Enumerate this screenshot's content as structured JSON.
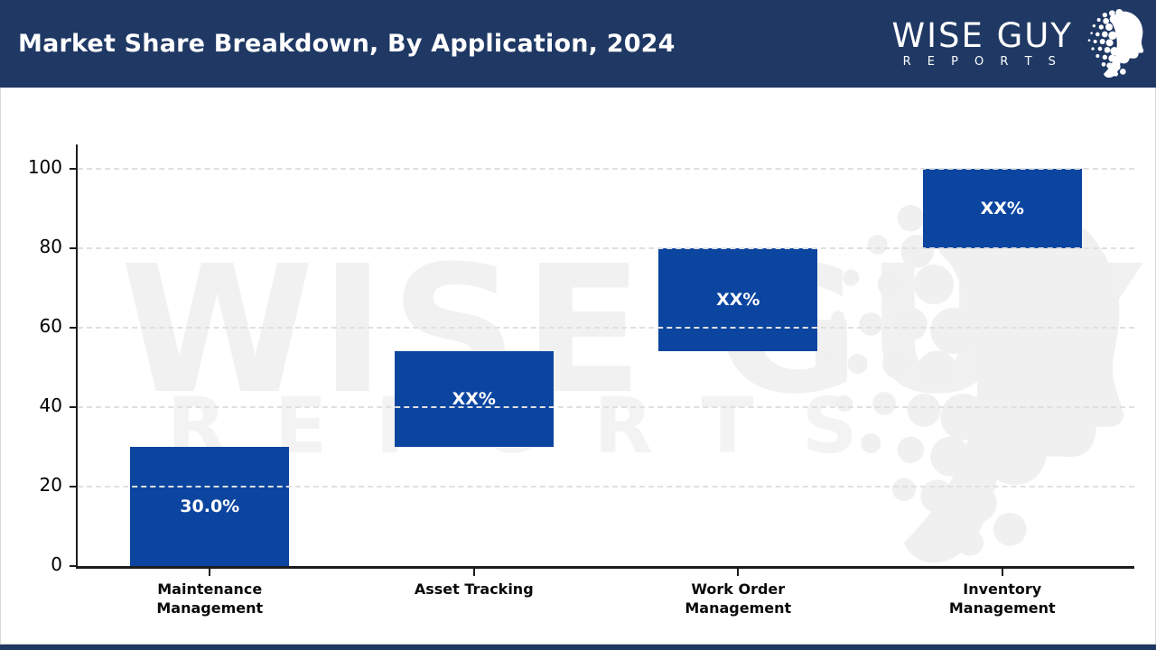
{
  "header": {
    "title": "Market Share Breakdown, By Application, 2024",
    "bg_color": "#1f3864"
  },
  "brand": {
    "line1": "WISE GUY",
    "line2": "R E P O R T S"
  },
  "watermark": {
    "line1": "WISE GUY",
    "line2": "R E P O R T S"
  },
  "colors": {
    "header_bg": "#1f3864",
    "bar": "#0b45a0",
    "axis": "#1c1c1c",
    "grid": "#e0e0e0"
  },
  "chart_data": {
    "type": "bar",
    "subtype": "waterfall",
    "title": "Market Share Breakdown, By Application, 2024",
    "categories": [
      "Maintenance Management",
      "Asset Tracking",
      "Work Order Management",
      "Inventory Management"
    ],
    "segments": [
      {
        "category": "Maintenance Management",
        "start": 0,
        "end": 30,
        "label": "30.0%"
      },
      {
        "category": "Asset Tracking",
        "start": 30,
        "end": 54,
        "label": "XX%"
      },
      {
        "category": "Work Order Management",
        "start": 54,
        "end": 80,
        "label": "XX%"
      },
      {
        "category": "Inventory Management",
        "start": 80,
        "end": 100,
        "label": "XX%"
      }
    ],
    "yticks": [
      0,
      20,
      40,
      60,
      80,
      100
    ],
    "ylim": [
      0,
      100
    ],
    "xlabel": "",
    "ylabel": "",
    "legend": "none",
    "grid": "dashed-horizontal-over-bars",
    "bar_color": "#0b45a0"
  }
}
